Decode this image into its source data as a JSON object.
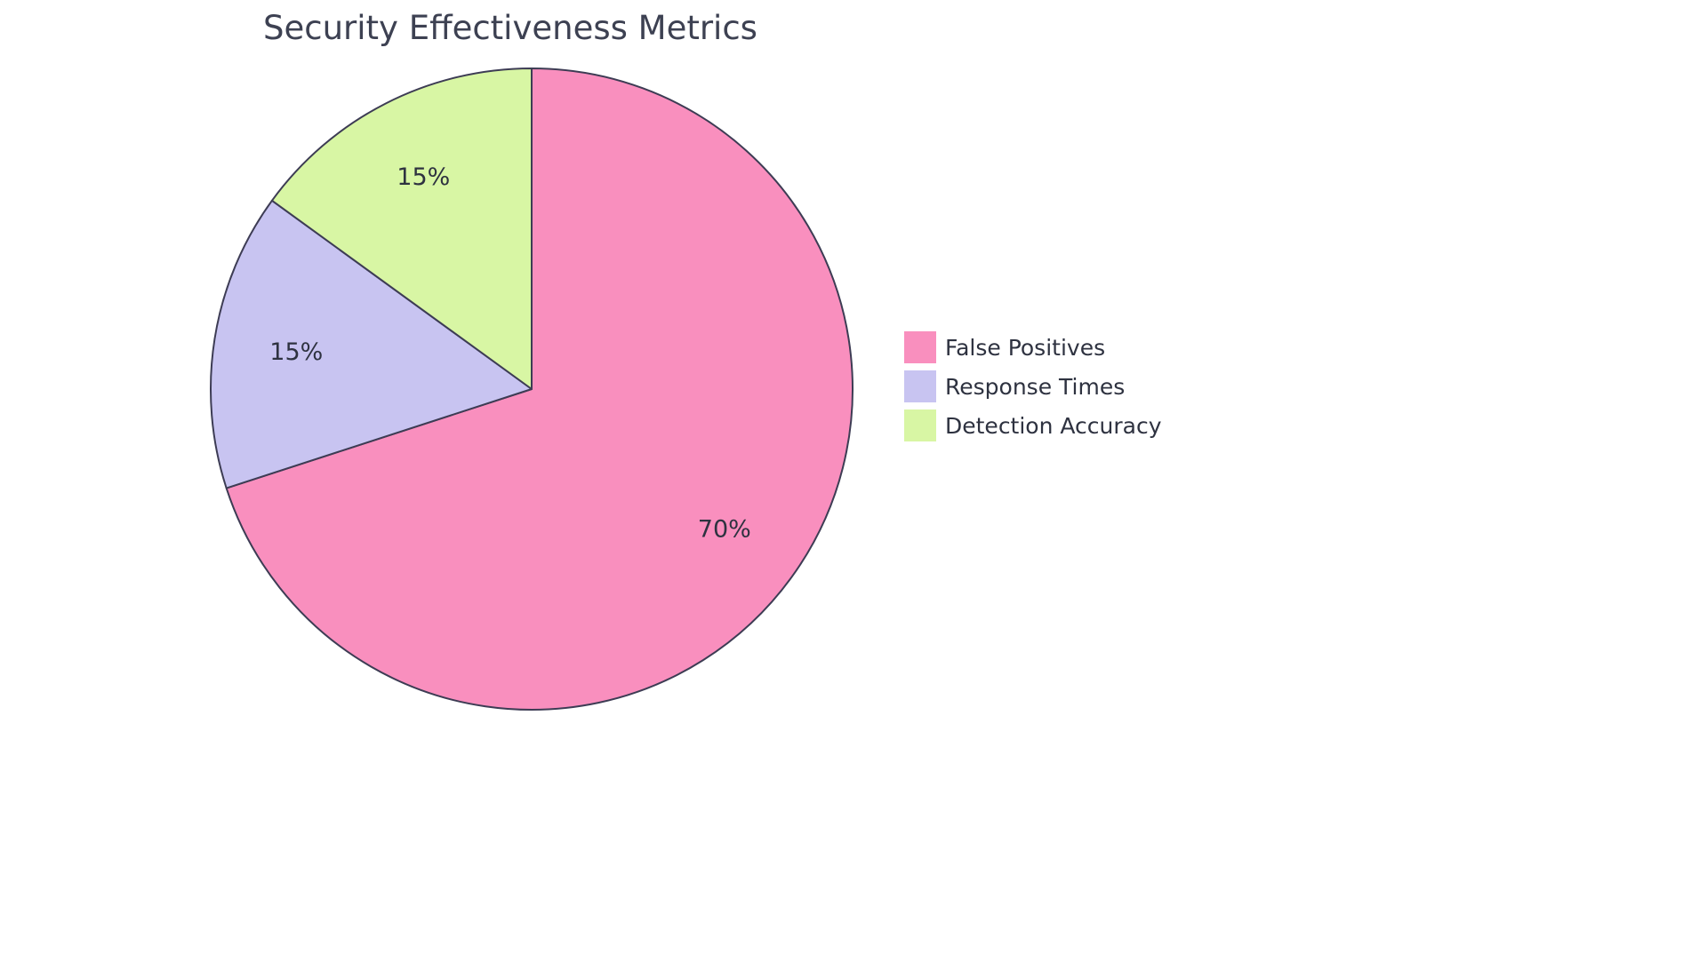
{
  "title": "Security Effectiveness Metrics",
  "colors": {
    "stroke": "#3d3c54",
    "title_text": "#3d4152",
    "label_text": "#2e3240",
    "background": "#ffffff"
  },
  "chart_data": {
    "type": "pie",
    "title": "Security Effectiveness Metrics",
    "legend_position": "right",
    "start_angle_deg": 0,
    "direction": "clockwise",
    "slices": [
      {
        "label": "False Positives",
        "value": 70,
        "percent_label": "70%",
        "color": "#F98FBE"
      },
      {
        "label": "Response Times",
        "value": 15,
        "percent_label": "15%",
        "color": "#C8C4F1"
      },
      {
        "label": "Detection Accuracy",
        "value": 15,
        "percent_label": "15%",
        "color": "#D8F6A4"
      }
    ]
  }
}
